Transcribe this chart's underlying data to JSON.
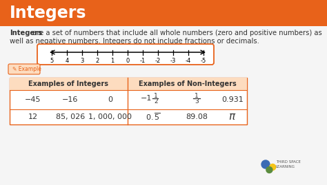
{
  "title": "Integers",
  "title_bg": "#E8621A",
  "title_color": "#FFFFFF",
  "body_bg": "#F5F5F5",
  "body_text_color": "#333333",
  "orange_color": "#E8621A",
  "light_orange": "#FDDCBF",
  "body_bold": "Integers",
  "body_text1": " are a set of numbers that include all whole numbers (zero and positive numbers) as",
  "body_text2": "well as negative numbers. Integers do not include fractions or decimals.",
  "number_line_nums": [
    "5",
    "4",
    "3",
    "2",
    "1",
    "0",
    "-1",
    "-2",
    "-3",
    "-4",
    "-5"
  ],
  "example_label": "Example",
  "table_header_left": "Examples of Integers",
  "table_header_right": "Examples of Non-Integers",
  "table_row1_left": [
    "−45",
    "−16",
    "0"
  ],
  "table_row2_left": [
    "12",
    "85, 026",
    "1, 000, 000"
  ],
  "font_family": "DejaVu Sans",
  "third_space_text": "THIRD SPACE\nLEARNING",
  "logo_blue": "#3B6BB5",
  "logo_yellow": "#F5C518",
  "logo_green": "#5B8C3E"
}
